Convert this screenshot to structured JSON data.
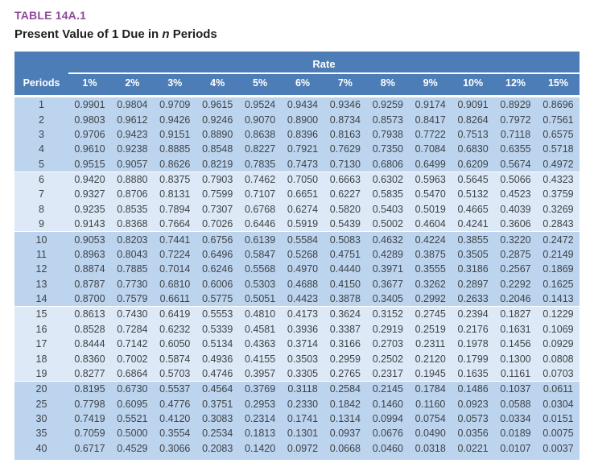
{
  "title": "TABLE 14A.1",
  "subtitle": {
    "prefix": "Present Value of 1 Due in ",
    "italic": "n",
    "suffix": " Periods"
  },
  "colors": {
    "title": "#8f4a9b",
    "header_bg": "#4d7db6",
    "header_text": "#ffffff",
    "band_dark": "#bcd4ee",
    "band_light": "#dde9f6",
    "cell_text": "#3e4348"
  },
  "table": {
    "rate_label": "Rate",
    "periods_label": "Periods",
    "rate_columns": [
      "1%",
      "2%",
      "3%",
      "4%",
      "5%",
      "6%",
      "7%",
      "8%",
      "9%",
      "10%",
      "12%",
      "15%"
    ],
    "rows": [
      {
        "period": "1",
        "shade": "dark",
        "values": [
          "0.9901",
          "0.9804",
          "0.9709",
          "0.9615",
          "0.9524",
          "0.9434",
          "0.9346",
          "0.9259",
          "0.9174",
          "0.9091",
          "0.8929",
          "0.8696"
        ]
      },
      {
        "period": "2",
        "shade": "dark",
        "values": [
          "0.9803",
          "0.9612",
          "0.9426",
          "0.9246",
          "0.9070",
          "0.8900",
          "0.8734",
          "0.8573",
          "0.8417",
          "0.8264",
          "0.7972",
          "0.7561"
        ]
      },
      {
        "period": "3",
        "shade": "dark",
        "values": [
          "0.9706",
          "0.9423",
          "0.9151",
          "0.8890",
          "0.8638",
          "0.8396",
          "0.8163",
          "0.7938",
          "0.7722",
          "0.7513",
          "0.7118",
          "0.6575"
        ]
      },
      {
        "period": "4",
        "shade": "dark",
        "values": [
          "0.9610",
          "0.9238",
          "0.8885",
          "0.8548",
          "0.8227",
          "0.7921",
          "0.7629",
          "0.7350",
          "0.7084",
          "0.6830",
          "0.6355",
          "0.5718"
        ]
      },
      {
        "period": "5",
        "shade": "dark",
        "values": [
          "0.9515",
          "0.9057",
          "0.8626",
          "0.8219",
          "0.7835",
          "0.7473",
          "0.7130",
          "0.6806",
          "0.6499",
          "0.6209",
          "0.5674",
          "0.4972"
        ]
      },
      {
        "period": "6",
        "shade": "light",
        "values": [
          "0.9420",
          "0.8880",
          "0.8375",
          "0.7903",
          "0.7462",
          "0.7050",
          "0.6663",
          "0.6302",
          "0.5963",
          "0.5645",
          "0.5066",
          "0.4323"
        ]
      },
      {
        "period": "7",
        "shade": "light",
        "values": [
          "0.9327",
          "0.8706",
          "0.8131",
          "0.7599",
          "0.7107",
          "0.6651",
          "0.6227",
          "0.5835",
          "0.5470",
          "0.5132",
          "0.4523",
          "0.3759"
        ]
      },
      {
        "period": "8",
        "shade": "light",
        "values": [
          "0.9235",
          "0.8535",
          "0.7894",
          "0.7307",
          "0.6768",
          "0.6274",
          "0.5820",
          "0.5403",
          "0.5019",
          "0.4665",
          "0.4039",
          "0.3269"
        ]
      },
      {
        "period": "9",
        "shade": "light",
        "values": [
          "0.9143",
          "0.8368",
          "0.7664",
          "0.7026",
          "0.6446",
          "0.5919",
          "0.5439",
          "0.5002",
          "0.4604",
          "0.4241",
          "0.3606",
          "0.2843"
        ]
      },
      {
        "period": "10",
        "shade": "dark",
        "values": [
          "0.9053",
          "0.8203",
          "0.7441",
          "0.6756",
          "0.6139",
          "0.5584",
          "0.5083",
          "0.4632",
          "0.4224",
          "0.3855",
          "0.3220",
          "0.2472"
        ]
      },
      {
        "period": "11",
        "shade": "dark",
        "values": [
          "0.8963",
          "0.8043",
          "0.7224",
          "0.6496",
          "0.5847",
          "0.5268",
          "0.4751",
          "0.4289",
          "0.3875",
          "0.3505",
          "0.2875",
          "0.2149"
        ]
      },
      {
        "period": "12",
        "shade": "dark",
        "values": [
          "0.8874",
          "0.7885",
          "0.7014",
          "0.6246",
          "0.5568",
          "0.4970",
          "0.4440",
          "0.3971",
          "0.3555",
          "0.3186",
          "0.2567",
          "0.1869"
        ]
      },
      {
        "period": "13",
        "shade": "dark",
        "values": [
          "0.8787",
          "0.7730",
          "0.6810",
          "0.6006",
          "0.5303",
          "0.4688",
          "0.4150",
          "0.3677",
          "0.3262",
          "0.2897",
          "0.2292",
          "0.1625"
        ]
      },
      {
        "period": "14",
        "shade": "dark",
        "values": [
          "0.8700",
          "0.7579",
          "0.6611",
          "0.5775",
          "0.5051",
          "0.4423",
          "0.3878",
          "0.3405",
          "0.2992",
          "0.2633",
          "0.2046",
          "0.1413"
        ]
      },
      {
        "period": "15",
        "shade": "light",
        "values": [
          "0.8613",
          "0.7430",
          "0.6419",
          "0.5553",
          "0.4810",
          "0.4173",
          "0.3624",
          "0.3152",
          "0.2745",
          "0.2394",
          "0.1827",
          "0.1229"
        ]
      },
      {
        "period": "16",
        "shade": "light",
        "values": [
          "0.8528",
          "0.7284",
          "0.6232",
          "0.5339",
          "0.4581",
          "0.3936",
          "0.3387",
          "0.2919",
          "0.2519",
          "0.2176",
          "0.1631",
          "0.1069"
        ]
      },
      {
        "period": "17",
        "shade": "light",
        "values": [
          "0.8444",
          "0.7142",
          "0.6050",
          "0.5134",
          "0.4363",
          "0.3714",
          "0.3166",
          "0.2703",
          "0.2311",
          "0.1978",
          "0.1456",
          "0.0929"
        ]
      },
      {
        "period": "18",
        "shade": "light",
        "values": [
          "0.8360",
          "0.7002",
          "0.5874",
          "0.4936",
          "0.4155",
          "0.3503",
          "0.2959",
          "0.2502",
          "0.2120",
          "0.1799",
          "0.1300",
          "0.0808"
        ]
      },
      {
        "period": "19",
        "shade": "light",
        "values": [
          "0.8277",
          "0.6864",
          "0.5703",
          "0.4746",
          "0.3957",
          "0.3305",
          "0.2765",
          "0.2317",
          "0.1945",
          "0.1635",
          "0.1161",
          "0.0703"
        ]
      },
      {
        "period": "20",
        "shade": "dark",
        "values": [
          "0.8195",
          "0.6730",
          "0.5537",
          "0.4564",
          "0.3769",
          "0.3118",
          "0.2584",
          "0.2145",
          "0.1784",
          "0.1486",
          "0.1037",
          "0.0611"
        ]
      },
      {
        "period": "25",
        "shade": "dark",
        "values": [
          "0.7798",
          "0.6095",
          "0.4776",
          "0.3751",
          "0.2953",
          "0.2330",
          "0.1842",
          "0.1460",
          "0.1160",
          "0.0923",
          "0.0588",
          "0.0304"
        ]
      },
      {
        "period": "30",
        "shade": "dark",
        "values": [
          "0.7419",
          "0.5521",
          "0.4120",
          "0.3083",
          "0.2314",
          "0.1741",
          "0.1314",
          "0.0994",
          "0.0754",
          "0.0573",
          "0.0334",
          "0.0151"
        ]
      },
      {
        "period": "35",
        "shade": "dark",
        "values": [
          "0.7059",
          "0.5000",
          "0.3554",
          "0.2534",
          "0.1813",
          "0.1301",
          "0.0937",
          "0.0676",
          "0.0490",
          "0.0356",
          "0.0189",
          "0.0075"
        ]
      },
      {
        "period": "40",
        "shade": "dark",
        "values": [
          "0.6717",
          "0.4529",
          "0.3066",
          "0.2083",
          "0.1420",
          "0.0972",
          "0.0668",
          "0.0460",
          "0.0318",
          "0.0221",
          "0.0107",
          "0.0037"
        ]
      }
    ]
  }
}
